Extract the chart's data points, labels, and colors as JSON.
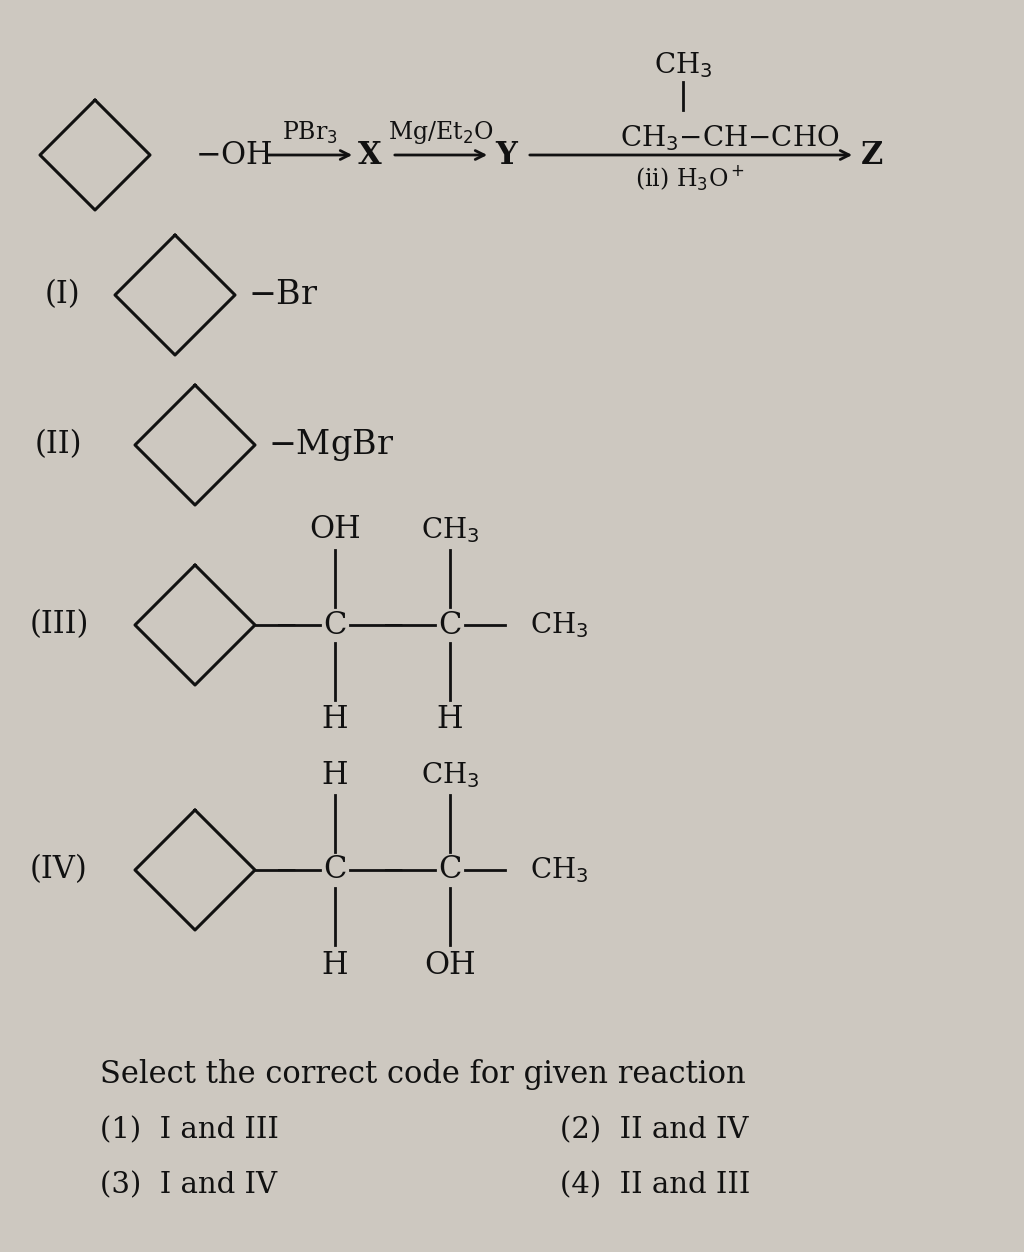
{
  "bg_color": "#cdc8c0",
  "text_color": "#111111",
  "fig_width": 10.24,
  "fig_height": 12.52,
  "title": "Select the correct code for given reaction",
  "options": [
    "(1)  I and III",
    "(2)  II and IV",
    "(3)  I and IV",
    "(4)  II and III"
  ]
}
